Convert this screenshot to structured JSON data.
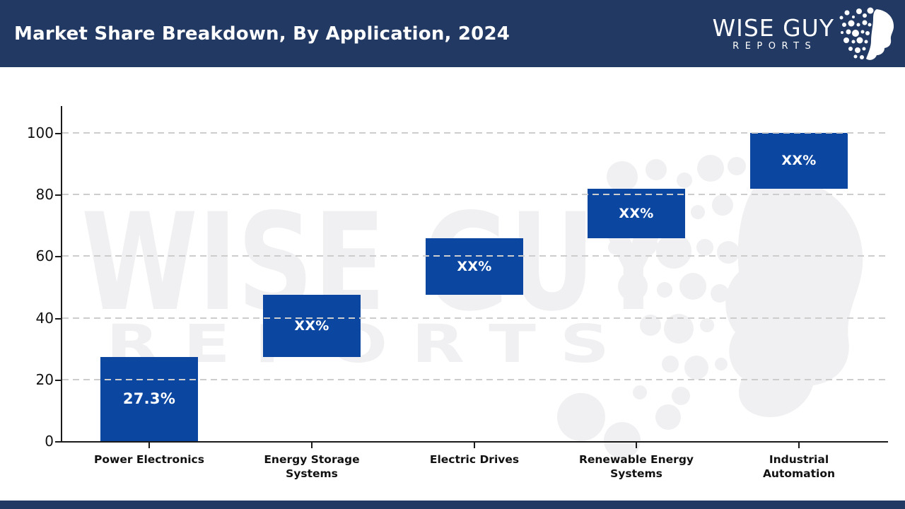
{
  "header": {
    "title": "Market Share Breakdown, By Application, 2024",
    "bg_color": "#223a63",
    "logo": {
      "line1": "WISE GUY",
      "line2": "REPORTS"
    }
  },
  "watermark": {
    "line1": "WISE GUY",
    "line2": "R E P O R T S"
  },
  "chart_data": {
    "type": "bar",
    "subtype": "waterfall",
    "title": "Market Share Breakdown, By Application, 2024",
    "categories": [
      "Power Electronics",
      "Energy Storage Systems",
      "Electric Drives",
      "Renewable Energy Systems",
      "Industrial Automation"
    ],
    "category_label_lines": [
      [
        "Power Electronics"
      ],
      [
        "Energy Storage",
        "Systems"
      ],
      [
        "Electric Drives"
      ],
      [
        "Renewable Energy",
        "Systems"
      ],
      [
        "Industrial",
        "Automation"
      ]
    ],
    "series": [
      {
        "name": "Market Share (%)",
        "segments": [
          {
            "category": "Power Electronics",
            "start": 0,
            "end": 27.3,
            "label": "27.3%"
          },
          {
            "category": "Energy Storage Systems",
            "start": 27.3,
            "end": 47.5,
            "label": "XX%"
          },
          {
            "category": "Electric Drives",
            "start": 47.5,
            "end": 65.8,
            "label": "XX%"
          },
          {
            "category": "Renewable Energy Systems",
            "start": 65.8,
            "end": 81.9,
            "label": "XX%"
          },
          {
            "category": "Industrial Automation",
            "start": 81.9,
            "end": 100,
            "label": "XX%"
          }
        ]
      }
    ],
    "xlabel": "",
    "ylabel": "",
    "ylim": [
      0,
      100
    ],
    "yticks": [
      0,
      20,
      40,
      60,
      80,
      100
    ],
    "grid": "horizontal-dashed-over-bars",
    "legend": "none",
    "bar_color": "#0b46a1",
    "bar_label_color": "#ffffff",
    "axis_color": "#1a1a1a"
  }
}
